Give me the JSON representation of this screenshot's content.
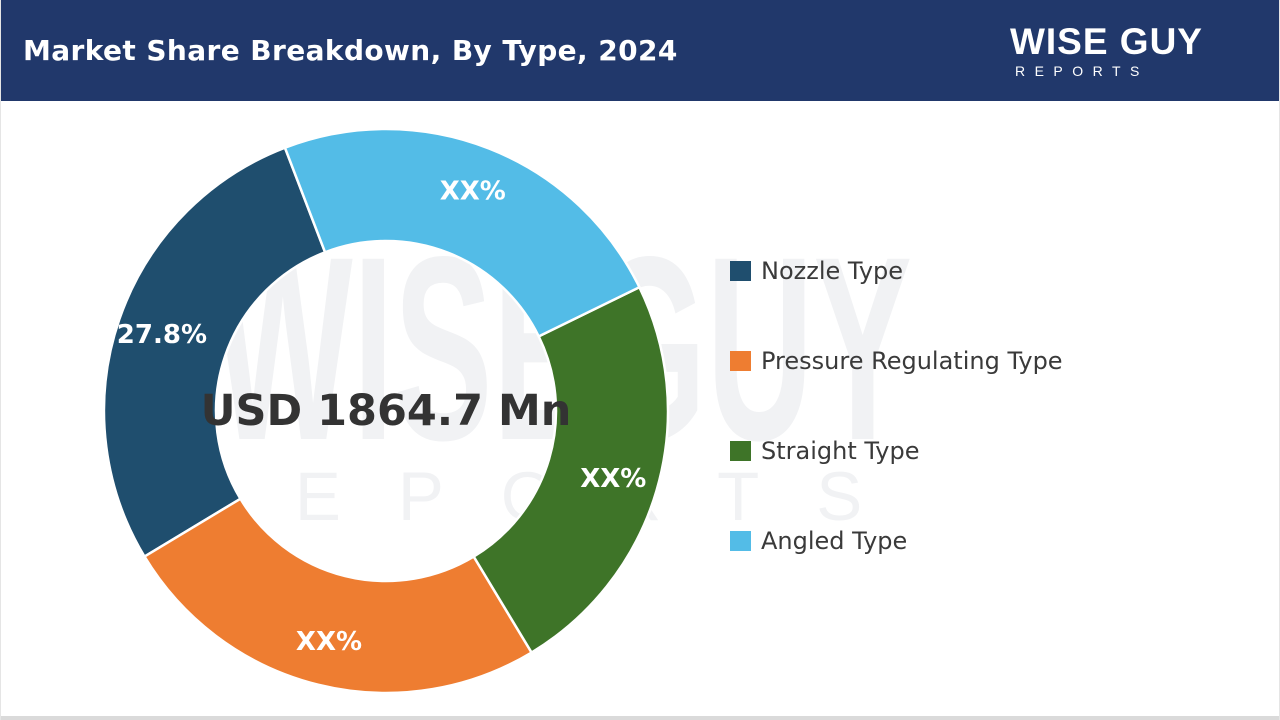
{
  "header": {
    "title": "Market Share Breakdown, By Type, 2024",
    "logo": {
      "line1": "WISE GUY",
      "line2": "REPORTS"
    }
  },
  "watermark": {
    "line1": "WISEGUY",
    "line2": "REPORTS"
  },
  "chart_data": {
    "type": "pie",
    "subtype": "donut",
    "title": "Market Share Breakdown, By Type, 2024",
    "center_label": "USD 1864.7 Mn",
    "start_angle_deg": 111,
    "direction": "counterclockwise",
    "legend_position": "right",
    "series": [
      {
        "name": "Nozzle Type",
        "value": 27.8,
        "label": "27.8%",
        "color": "#1F4E6E"
      },
      {
        "name": "Pressure Regulating Type",
        "value": 25.0,
        "label": "XX%",
        "color": "#EE7D31"
      },
      {
        "name": "Straight Type",
        "value": 23.6,
        "label": "XX%",
        "color": "#3E7428"
      },
      {
        "name": "Angled Type",
        "value": 23.6,
        "label": "XX%",
        "color": "#53BCE7"
      }
    ]
  },
  "colors": {
    "header_background": "#21386B",
    "center_text": "#333333",
    "legend_text": "#3A3A3A",
    "watermark": "#F1F2F4"
  }
}
